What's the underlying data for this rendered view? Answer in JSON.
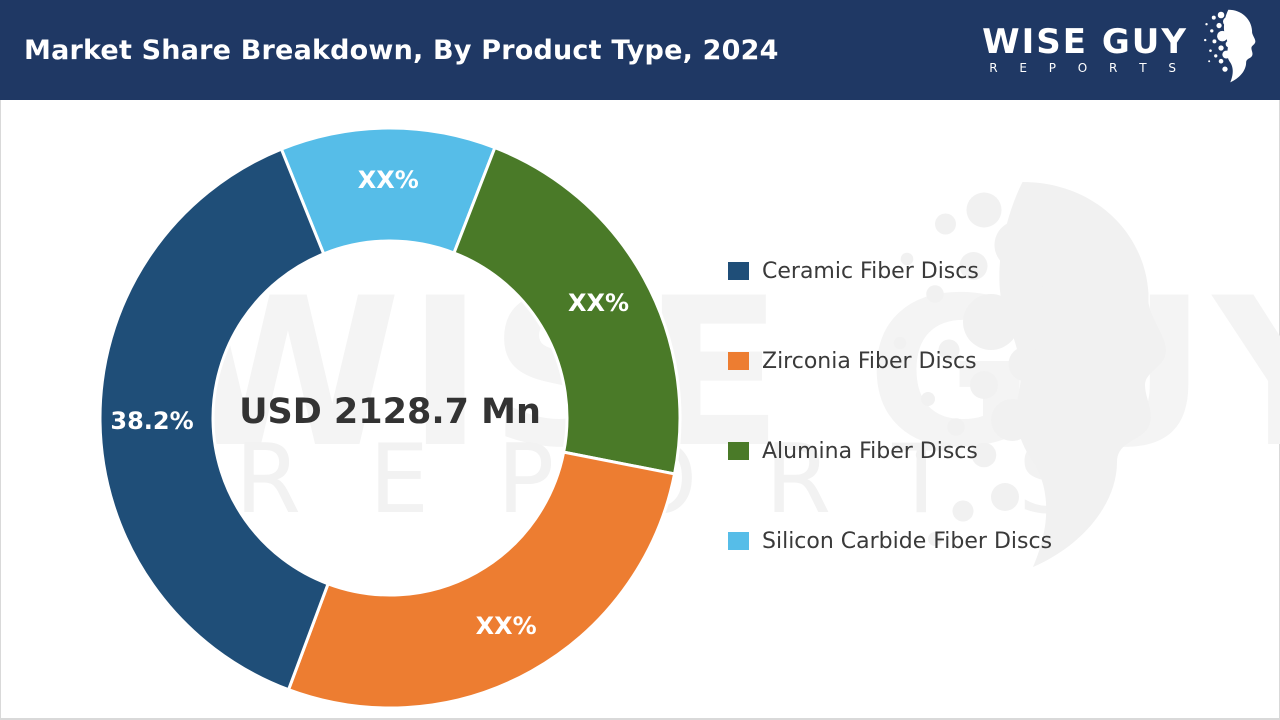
{
  "header": {
    "title": "Market Share Breakdown, By Product Type, 2024",
    "background_color": "#1F3864",
    "logo": {
      "line1": "WISE GUY",
      "line2": "R E P O R T S"
    }
  },
  "watermark": {
    "line1": "WISE GUY",
    "line2": "REPORTS"
  },
  "chart_data": {
    "type": "pie",
    "donut": true,
    "title": "Market Share Breakdown, By Product Type, 2024",
    "center_label": "USD 2128.7 Mn",
    "legend_position": "right",
    "start_angle_deg": -22,
    "segments": [
      {
        "name": "Ceramic Fiber Discs",
        "value": 38.2,
        "label": "38.2%",
        "color": "#1F4E78"
      },
      {
        "name": "Zirconia Fiber Discs",
        "value": 27.6,
        "label": "XX%",
        "color": "#ED7D31"
      },
      {
        "name": "Alumina Fiber Discs",
        "value": 22.2,
        "label": "XX%",
        "color": "#4A7A28"
      },
      {
        "name": "Silicon Carbide Fiber Discs",
        "value": 12.0,
        "label": "XX%",
        "color": "#56BDE8"
      }
    ],
    "draw_order_clockwise_from_top": [
      3,
      2,
      1,
      0
    ],
    "label_text_color": "#ffffff"
  }
}
